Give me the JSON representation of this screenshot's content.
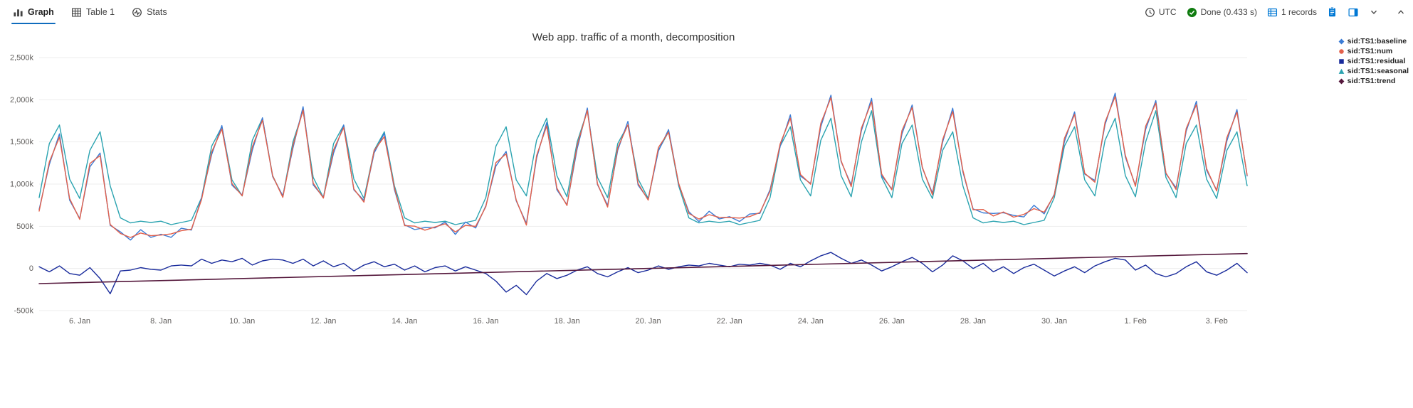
{
  "toolbar": {
    "tabs": [
      {
        "label": "Graph",
        "active": true
      },
      {
        "label": "Table 1",
        "active": false
      },
      {
        "label": "Stats",
        "active": false
      }
    ],
    "timezone": "UTC",
    "status": "Done (0.433 s)",
    "records": "1 records"
  },
  "colors": {
    "accent_blue": "#0f6cbd",
    "icon_blue": "#0078d4",
    "status_green": "#107c10",
    "axis_text": "#605e5c",
    "gridline": "#ededed"
  },
  "icons": {
    "tab_graph": "bar-chart-icon",
    "tab_table": "table-grid-icon",
    "tab_stats": "stats-pulse-icon",
    "timezone": "clock-icon",
    "status": "check-circle-icon",
    "records": "table-rows-icon",
    "copy": "clipboard-icon",
    "layout": "panel-layout-icon",
    "more": "chevron-down-icon",
    "collapse": "chevron-up-icon"
  },
  "chart_data": {
    "type": "line",
    "title": "Web app. traffic of a month, decomposition",
    "x_unit": "time, Jan 5 00:00 to Feb 3 18:00, 6-hour samples (x in days from Jan 5)",
    "x_step": 0.25,
    "xlim": [
      0,
      29.75
    ],
    "ylim": [
      -500,
      2500
    ],
    "value_unit": "thousands (k)",
    "legend_position": "top-right",
    "grid": "horizontal",
    "xticks": [
      {
        "value": 1,
        "label": "6. Jan"
      },
      {
        "value": 3,
        "label": "8. Jan"
      },
      {
        "value": 5,
        "label": "10. Jan"
      },
      {
        "value": 7,
        "label": "12. Jan"
      },
      {
        "value": 9,
        "label": "14. Jan"
      },
      {
        "value": 11,
        "label": "16. Jan"
      },
      {
        "value": 13,
        "label": "18. Jan"
      },
      {
        "value": 15,
        "label": "20. Jan"
      },
      {
        "value": 17,
        "label": "22. Jan"
      },
      {
        "value": 19,
        "label": "24. Jan"
      },
      {
        "value": 21,
        "label": "26. Jan"
      },
      {
        "value": 23,
        "label": "28. Jan"
      },
      {
        "value": 25,
        "label": "30. Jan"
      },
      {
        "value": 27,
        "label": "1. Feb"
      },
      {
        "value": 29,
        "label": "3. Feb"
      }
    ],
    "yticks": [
      {
        "value": -500,
        "label": "-500k"
      },
      {
        "value": 0,
        "label": "0"
      },
      {
        "value": 500,
        "label": "500k"
      },
      {
        "value": 1000,
        "label": "1,000k"
      },
      {
        "value": 1500,
        "label": "1,500k"
      },
      {
        "value": 2000,
        "label": "2,000k"
      },
      {
        "value": 2500,
        "label": "2,500k"
      }
    ],
    "series": [
      {
        "name": "sid:TS1:baseline",
        "color": "#3a7bd5",
        "marker": "diamond",
        "z": 2,
        "width": 1.4,
        "values": [
          700,
          1233,
          1596,
          809,
          592,
          1205,
          1368,
          511,
          434,
          337,
          460,
          368,
          406,
          369,
          477,
          455,
          838,
          1351,
          1694,
          987,
          870,
          1403,
          1786,
          1089,
          862,
          1425,
          1918,
          991,
          844,
          1367,
          1700,
          933,
          806,
          1369,
          1602,
          935,
          518,
          461,
          484,
          482,
          550,
          403,
          551,
          479,
          742,
          1215,
          1388,
          801,
          534,
          1307,
          1730,
          933,
          756,
          1419,
          1902,
          995,
          748,
          1401,
          1744,
          987,
          820,
          1393,
          1646,
          999,
          672,
          555,
          678,
          586,
          614,
          557,
          645,
          653,
          936,
          1449,
          1822,
          1095,
          1008,
          1681,
          2054,
          1267,
          990,
          1633,
          2016,
          1099,
          942,
          1595,
          1938,
          1191,
          894,
          1497,
          1900,
          1143,
          706,
          659,
          652,
          660,
          628,
          611,
          749,
          647,
          880,
          1503,
          1856,
          1119,
          1042,
          1705,
          2078,
          1321,
          984,
          1647,
          1990,
          1123,
          956,
          1629,
          1982,
          1165,
          928,
          1511,
          1884,
          1097
        ]
      },
      {
        "name": "sid:TS1:num",
        "color": "#e3604b",
        "marker": "circle",
        "z": 3,
        "width": 1.4,
        "values": [
          680,
          1263,
          1556,
          829,
          582,
          1245,
          1338,
          521,
          414,
          367,
          420,
          388,
          396,
          409,
          447,
          465,
          818,
          1381,
          1654,
          1007,
          860,
          1443,
          1756,
          1099,
          842,
          1455,
          1878,
          1011,
          834,
          1407,
          1670,
          943,
          786,
          1399,
          1562,
          955,
          508,
          501,
          454,
          492,
          530,
          433,
          511,
          499,
          732,
          1255,
          1358,
          811,
          514,
          1337,
          1690,
          953,
          746,
          1459,
          1872,
          1005,
          728,
          1431,
          1704,
          1007,
          810,
          1433,
          1616,
          1009,
          652,
          585,
          638,
          606,
          604,
          597,
          615,
          663,
          916,
          1479,
          1782,
          1115,
          998,
          1721,
          2024,
          1277,
          970,
          1663,
          1976,
          1119,
          932,
          1635,
          1908,
          1201,
          874,
          1527,
          1860,
          1163,
          696,
          699,
          622,
          670,
          608,
          641,
          709,
          667,
          870,
          1543,
          1826,
          1129,
          1022,
          1735,
          2038,
          1341,
          974,
          1687,
          1960,
          1133,
          936,
          1659,
          1942,
          1185,
          918,
          1551,
          1854,
          1107
        ]
      },
      {
        "name": "sid:TS1:residual",
        "color": "#182a9b",
        "marker": "square",
        "z": 4,
        "width": 1.4,
        "values": [
          20,
          -40,
          30,
          -60,
          -80,
          10,
          -120,
          -300,
          -30,
          -20,
          10,
          -10,
          -20,
          30,
          40,
          30,
          110,
          60,
          100,
          80,
          120,
          40,
          90,
          110,
          100,
          60,
          110,
          30,
          90,
          20,
          60,
          -30,
          40,
          80,
          20,
          50,
          -20,
          30,
          -40,
          10,
          30,
          -30,
          20,
          -20,
          -60,
          -150,
          -280,
          -200,
          -310,
          -150,
          -60,
          -120,
          -80,
          -20,
          20,
          -60,
          -100,
          -40,
          10,
          -50,
          -20,
          30,
          -10,
          20,
          40,
          30,
          60,
          40,
          20,
          50,
          40,
          60,
          40,
          -10,
          60,
          20,
          90,
          150,
          190,
          120,
          60,
          100,
          40,
          -30,
          20,
          80,
          130,
          60,
          -40,
          40,
          150,
          90,
          0,
          60,
          -40,
          20,
          -60,
          10,
          50,
          -20,
          -90,
          -30,
          20,
          -50,
          30,
          80,
          120,
          100,
          -20,
          40,
          -60,
          -100,
          -60,
          20,
          80,
          -40,
          -80,
          -20,
          60,
          -50
        ]
      },
      {
        "name": "sid:TS1:seasonal",
        "color": "#2aa3b0",
        "marker": "triangle",
        "z": 1,
        "width": 1.4,
        "values": [
          840,
          1480,
          1700,
          1060,
          830,
          1400,
          1620,
          980,
          600,
          540,
          560,
          545,
          560,
          520,
          545,
          570,
          840,
          1450,
          1680,
          1050,
          860,
          1520,
          1780,
          1100,
          850,
          1500,
          1870,
          1080,
          840,
          1480,
          1700,
          1060,
          830,
          1400,
          1620,
          980,
          600,
          540,
          560,
          545,
          560,
          520,
          545,
          570,
          840,
          1450,
          1680,
          1050,
          860,
          1520,
          1780,
          1100,
          850,
          1500,
          1870,
          1080,
          840,
          1480,
          1700,
          1060,
          830,
          1400,
          1620,
          980,
          600,
          540,
          560,
          545,
          560,
          520,
          545,
          570,
          840,
          1450,
          1680,
          1050,
          860,
          1520,
          1780,
          1100,
          850,
          1500,
          1870,
          1080,
          840,
          1480,
          1700,
          1060,
          830,
          1400,
          1620,
          980,
          600,
          540,
          560,
          545,
          560,
          520,
          545,
          570,
          840,
          1450,
          1680,
          1050,
          860,
          1520,
          1780,
          1100,
          850,
          1500,
          1870,
          1080,
          840,
          1480,
          1700,
          1060,
          830,
          1400,
          1620,
          980
        ]
      },
      {
        "name": "sid:TS1:trend",
        "color": "#54173b",
        "marker": "diamond",
        "z": 5,
        "width": 1.6,
        "x": [
          0,
          29.75
        ],
        "values": [
          -180,
          177
        ]
      }
    ]
  }
}
